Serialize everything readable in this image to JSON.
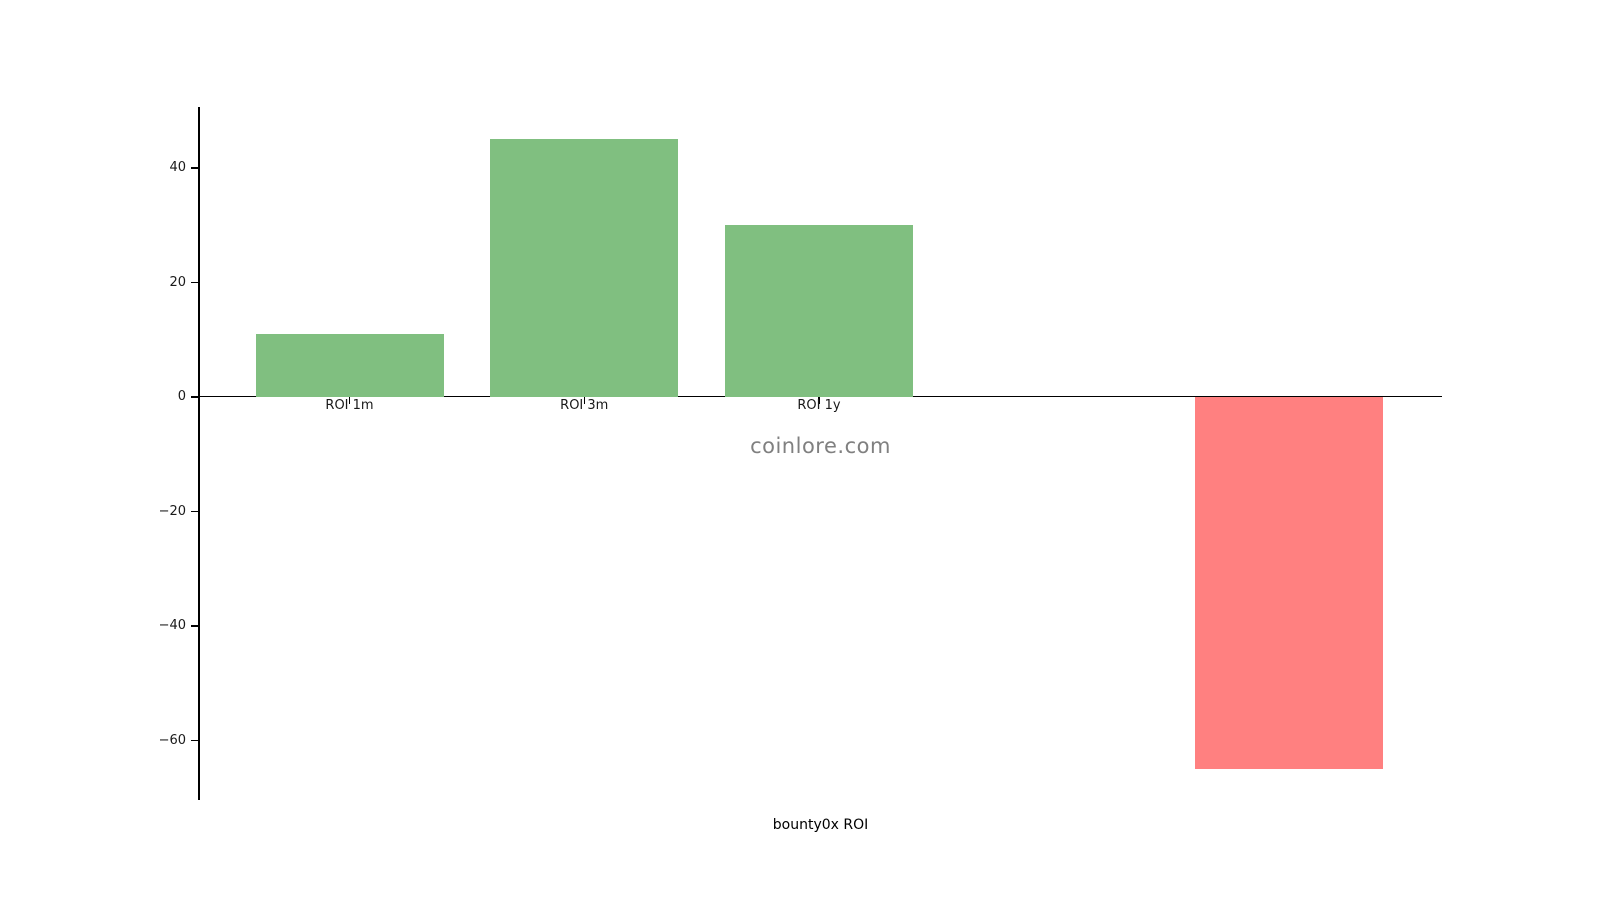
{
  "page": {
    "background": "#ffffff"
  },
  "chart_data": {
    "type": "bar",
    "title": "",
    "xlabel": "bounty0x ROI",
    "watermark": "coinlore.com",
    "categories": [
      "ROI 1m",
      "ROI 3m",
      "ROI 1y",
      "",
      ""
    ],
    "values": [
      11,
      45,
      30,
      null,
      -65
    ],
    "bar_colors": [
      "#80bf80",
      "#80bf80",
      "#80bf80",
      null,
      "#ff8080"
    ],
    "y_axis": {
      "ticks": [
        {
          "value": 40,
          "label": "40"
        },
        {
          "value": 20,
          "label": "20"
        },
        {
          "value": 0,
          "label": "0"
        },
        {
          "value": -20,
          "label": "−20"
        },
        {
          "value": -40,
          "label": "−40"
        },
        {
          "value": -60,
          "label": "−60"
        }
      ],
      "ylim": [
        -70.9,
        50.9
      ]
    },
    "grid": false,
    "legend": null,
    "colors": {
      "positive": "#80bf80",
      "negative": "#ff8080",
      "axis": "#000000",
      "tick_text": "#1a1a1a",
      "watermark": "#808080",
      "xlabel_text": "#000000"
    }
  }
}
